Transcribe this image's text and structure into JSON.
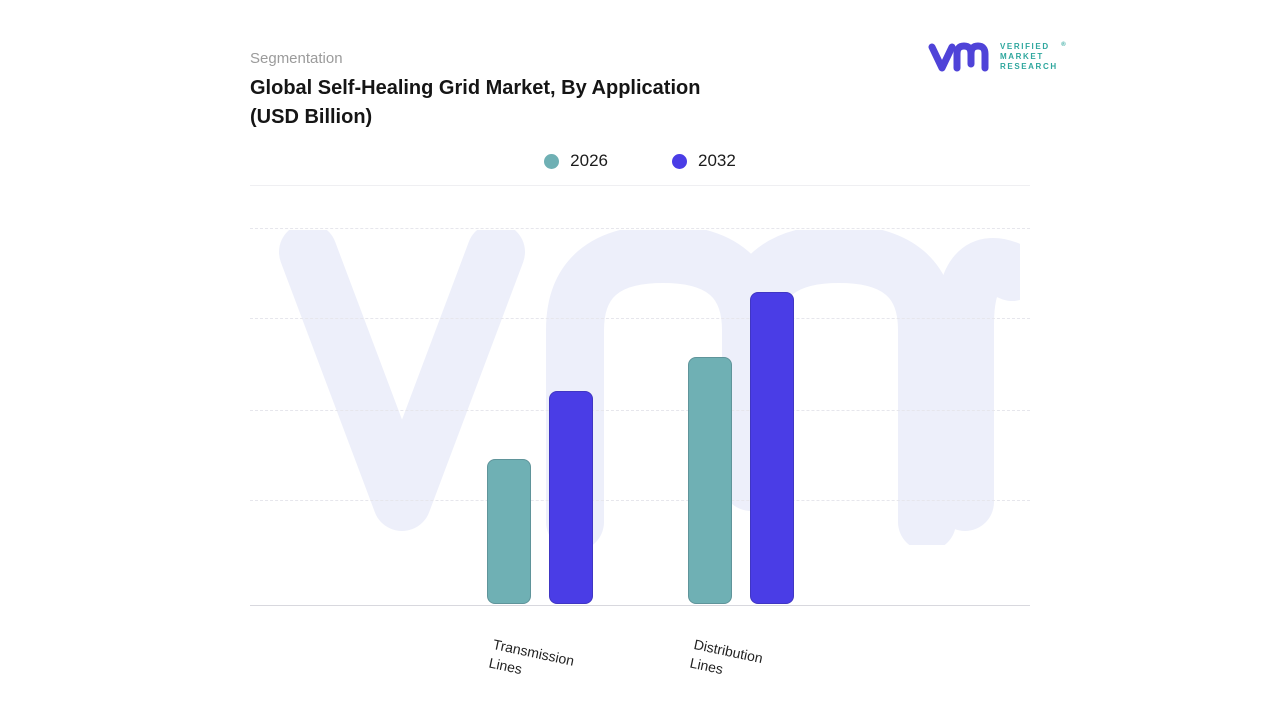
{
  "page": {
    "background": "#ffffff"
  },
  "header": {
    "section_label": "Segmentation",
    "title_line1": "Global Self-Healing Grid Market, By Application",
    "title_line2": "(USD Billion)"
  },
  "logo": {
    "brand_lines": [
      "VERIFIED",
      "MARKET",
      "RESEARCH"
    ],
    "registered_mark": "®",
    "mark_color": "#4f43d8",
    "text_color": "#2fa79e"
  },
  "chart_data": {
    "type": "bar",
    "title": "Global Self-Healing Grid Market, By Application (USD Billion)",
    "categories": [
      "Transmission Lines",
      "Distribution Lines"
    ],
    "series": [
      {
        "name": "2026",
        "color": "#6fb0b4",
        "values": [
          4.7,
          8.0
        ]
      },
      {
        "name": "2032",
        "color": "#4a3de6",
        "values": [
          6.9,
          10.1
        ]
      }
    ],
    "ylim": [
      0,
      12.2
    ],
    "xlabel": "",
    "ylabel": "",
    "grid": "horizontal-dashed",
    "legend_position": "top-center",
    "legend_entries": [
      "2026",
      "2032"
    ],
    "accent_colors": {
      "series_2026": "#6fb0b4",
      "series_2032": "#4a3de6",
      "watermark": "#edeffa"
    }
  }
}
